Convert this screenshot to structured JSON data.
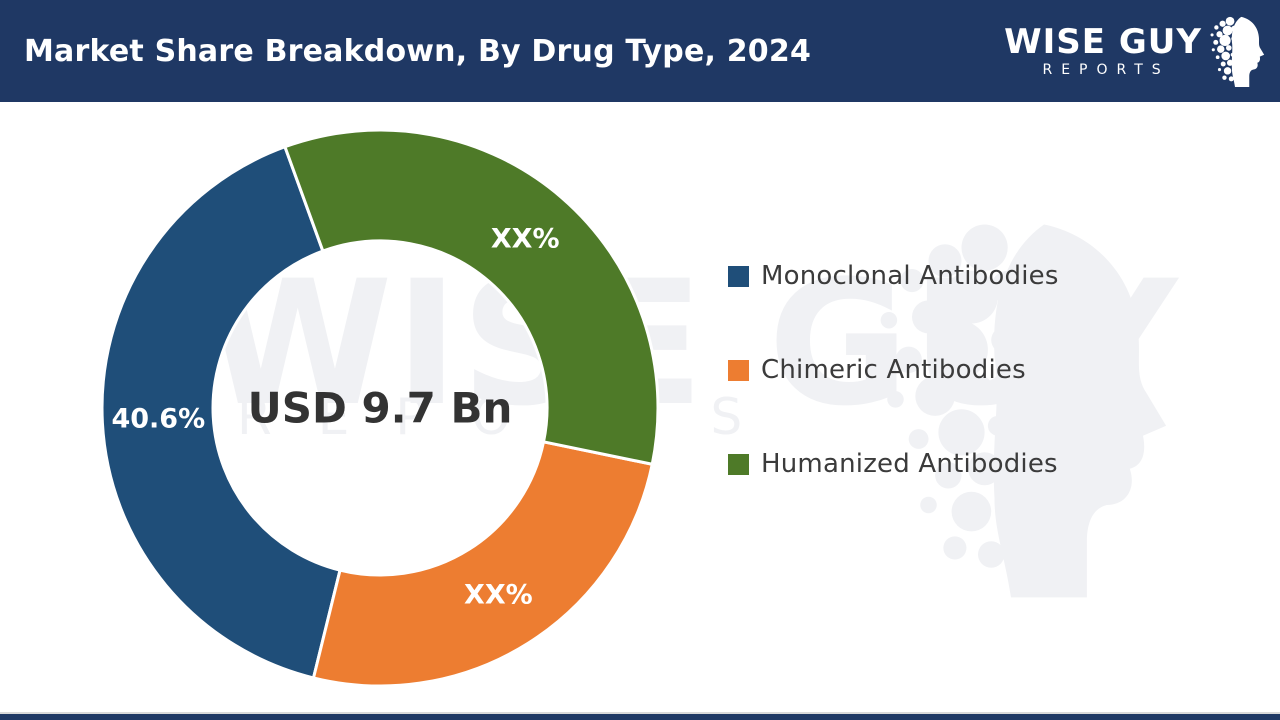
{
  "header": {
    "title": "Market Share Breakdown, By Drug Type, 2024",
    "logo": {
      "wordmark": "WISE GUY",
      "subtext": "REPORTS"
    }
  },
  "watermark": {
    "wordmark": "WISE GUY",
    "subtext": "REPORTS"
  },
  "chart_data": {
    "type": "pie",
    "donut": true,
    "center_label": "USD 9.7 Bn",
    "start_angle_deg": 110,
    "direction": "counterclockwise",
    "legend_position": "right",
    "segments": [
      {
        "label": "Monoclonal Antibodies",
        "value_pct": 40.6,
        "display_label": "40.6%",
        "color": "#1F4E79"
      },
      {
        "label": "Chimeric Antibodies",
        "value_pct": 25.6,
        "display_label": "XX%",
        "color": "#ED7D31"
      },
      {
        "label": "Humanized Antibodies",
        "value_pct": 33.8,
        "display_label": "XX%",
        "color": "#4E7A28"
      }
    ]
  },
  "colors": {
    "header_bg": "#1F3864",
    "bottom_bar": "#1F3864",
    "watermark": "#f0f1f4",
    "center_text": "#333333",
    "legend_text": "#3b3b3b"
  }
}
